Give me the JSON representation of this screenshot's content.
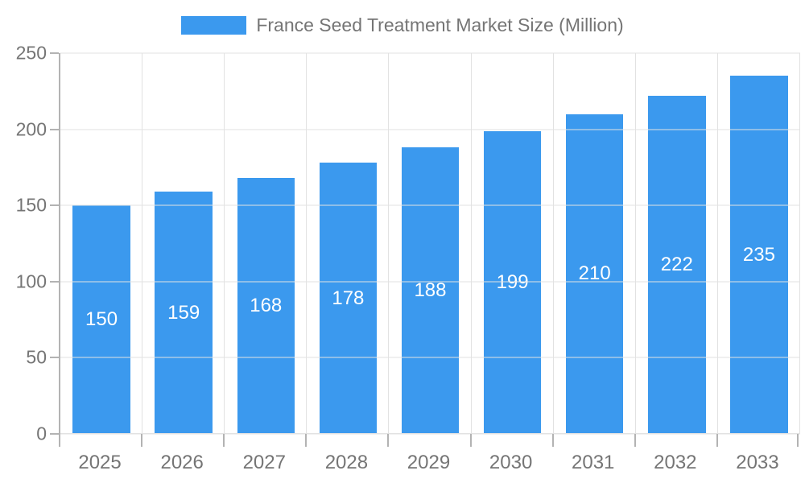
{
  "chart_data": {
    "type": "bar",
    "title": "France Seed Treatment Market Size (Million)",
    "categories": [
      "2025",
      "2026",
      "2027",
      "2028",
      "2029",
      "2030",
      "2031",
      "2032",
      "2033"
    ],
    "values": [
      150,
      159,
      168,
      178,
      188,
      199,
      210,
      222,
      235
    ],
    "xlabel": "",
    "ylabel": "",
    "ylim": [
      0,
      250
    ],
    "yticks": [
      0,
      50,
      100,
      150,
      200,
      250
    ],
    "grid": true,
    "legend_position": "top",
    "value_labels": "inside-center",
    "colors": {
      "bar": "#3b99ee",
      "value_label": "#ffffff",
      "axis": "#b3b3b3",
      "gridline": "#e2e2e2",
      "text": "#757575",
      "background": "#ffffff"
    }
  }
}
